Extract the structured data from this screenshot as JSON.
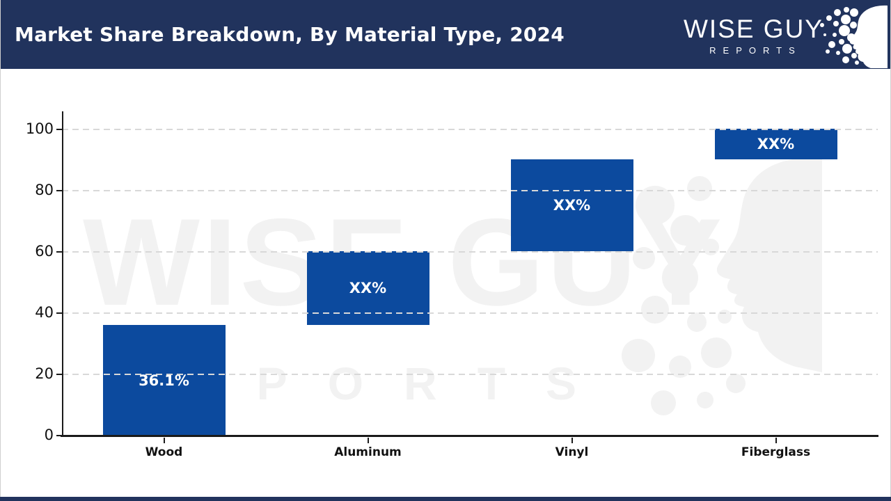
{
  "header": {
    "title": "Market Share Breakdown, By Material Type, 2024",
    "logo": {
      "primary": "WISE GUY",
      "secondary": "REPORTS"
    }
  },
  "watermark": {
    "primary": "WISE GUY",
    "secondary": "REPORTS"
  },
  "chart_data": {
    "type": "bar",
    "variant": "floating-waterfall",
    "title": "Market Share Breakdown, By Material Type, 2024",
    "categories": [
      "Wood",
      "Aluminum",
      "Vinyl",
      "Fiberglass"
    ],
    "segments": [
      {
        "category": "Wood",
        "start": 0,
        "end": 36.1,
        "label": "36.1%"
      },
      {
        "category": "Aluminum",
        "start": 36.1,
        "end": 60.2,
        "label": "XX%"
      },
      {
        "category": "Vinyl",
        "start": 60.2,
        "end": 90.2,
        "label": "XX%"
      },
      {
        "category": "Fiberglass",
        "start": 90.2,
        "end": 100.2,
        "label": "XX%"
      }
    ],
    "xlabel": "",
    "ylabel": "",
    "yticks": [
      0,
      20,
      40,
      60,
      80,
      100
    ],
    "ylim": [
      0,
      106
    ],
    "grid": {
      "horizontal_dashed": true,
      "color": "#d8d8d8",
      "drawn_over_bars": true
    },
    "legend": null,
    "colors": {
      "bar": "#0c4a9e",
      "bar_label": "#ffffff",
      "axis": "#1a1a1a",
      "tick_label": "#111111"
    }
  },
  "theme": {
    "header_bg": "#21335d",
    "footer_bg": "#21335d",
    "page_bg": "#ffffff",
    "watermark_color": "#f2f2f2"
  }
}
